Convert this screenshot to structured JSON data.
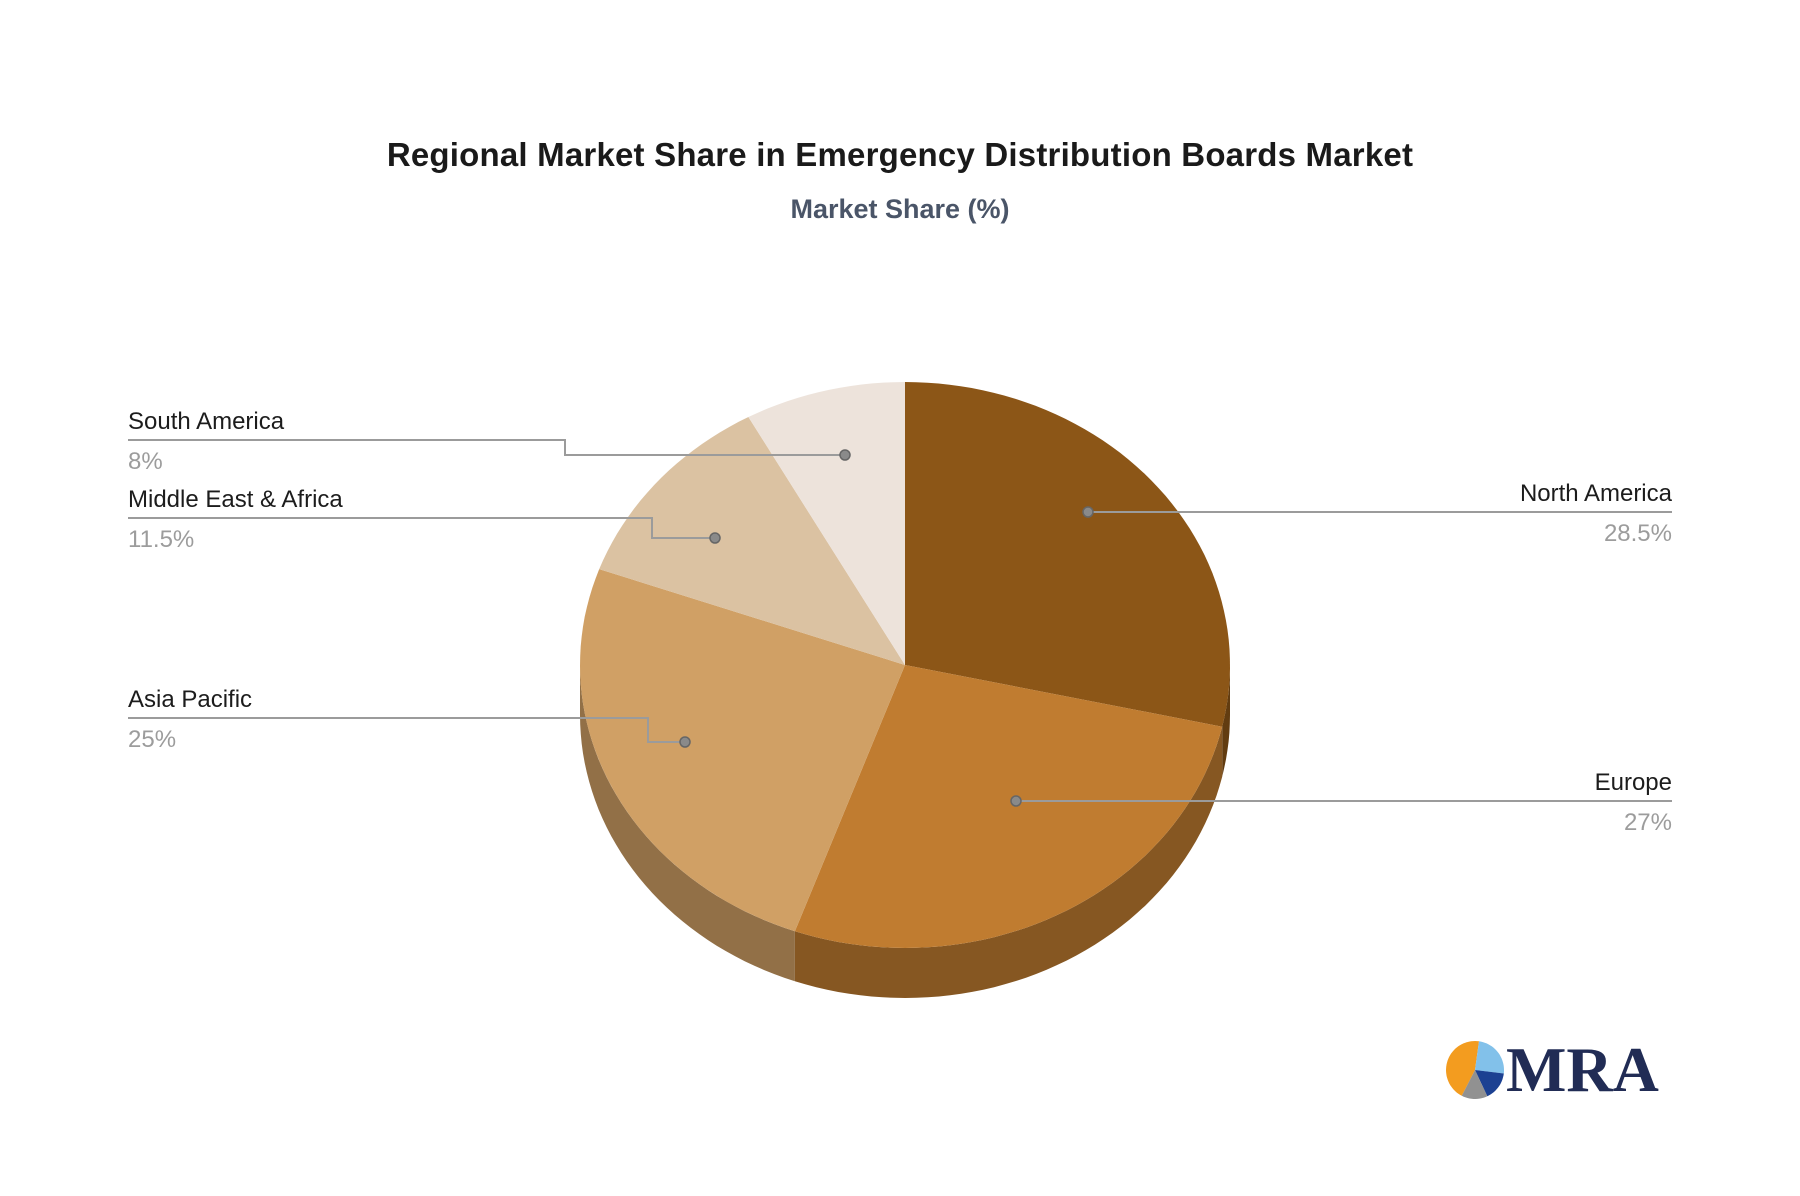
{
  "title": "Regional Market Share in Emergency Distribution Boards Market",
  "subtitle": "Market Share (%)",
  "chart_data": {
    "type": "pie",
    "title": "Regional Market Share in Emergency Distribution Boards Market",
    "subtitle": "Market Share (%)",
    "unit": "%",
    "style": "3d",
    "start_angle_deg": 0,
    "direction": "clockwise",
    "legend_position": "callout-labels",
    "slices": [
      {
        "label": "North America",
        "value": 28.5,
        "pct_label": "28.5%",
        "color": "#8c5617"
      },
      {
        "label": "Europe",
        "value": 27,
        "pct_label": "27%",
        "color": "#c07c30"
      },
      {
        "label": "Asia Pacific",
        "value": 25,
        "pct_label": "25%",
        "color": "#d0a065"
      },
      {
        "label": "Middle East & Africa",
        "value": 11.5,
        "pct_label": "11.5%",
        "color": "#dbc2a2"
      },
      {
        "label": "South America",
        "value": 8,
        "pct_label": "8%",
        "color": "#ede3db"
      }
    ],
    "label_color": "#1c1c1c",
    "pct_color": "#9c9c9c",
    "leader_line_color": "#9b9b9b",
    "leader_dot_color": "#8a8a8a"
  },
  "logo": {
    "text": "MRA",
    "mark_colors": {
      "orange": "#f39c1f",
      "light_blue": "#82c1ea",
      "navy": "#1c4192",
      "gray": "#919191"
    },
    "text_color": "#212c55"
  }
}
